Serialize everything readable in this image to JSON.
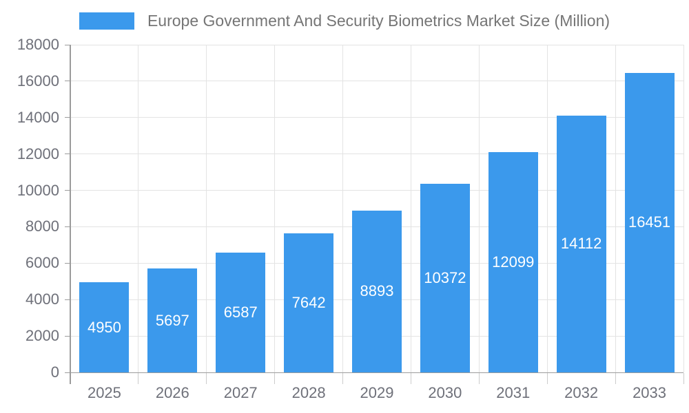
{
  "chart_data": {
    "type": "bar",
    "title": "Europe Government And Security Biometrics Market Size (Million)",
    "categories": [
      "2025",
      "2026",
      "2027",
      "2028",
      "2029",
      "2030",
      "2031",
      "2032",
      "2033"
    ],
    "series": [
      {
        "name": "Europe Government And Security Biometrics Market Size (Million)",
        "values": [
          4950,
          5697,
          6587,
          7642,
          8893,
          10372,
          12099,
          14112,
          16451
        ]
      }
    ],
    "y_ticks": [
      0,
      2000,
      4000,
      6000,
      8000,
      10000,
      12000,
      14000,
      16000,
      18000
    ],
    "ylim": [
      0,
      18000
    ],
    "xlabel": "",
    "ylabel": "",
    "grid": "on",
    "legend_position": "top-center",
    "bar_labels": "inside-center"
  },
  "style": {
    "bar_color": "#3B99EC",
    "bar_label_color": "#FFFFFF",
    "title_color": "#757575",
    "axis_label_color": "#6E7079",
    "grid_color": "#E3E3E3",
    "boundary_tick_color": "#CCCCCC",
    "axis_color": "#9B9B9B"
  }
}
